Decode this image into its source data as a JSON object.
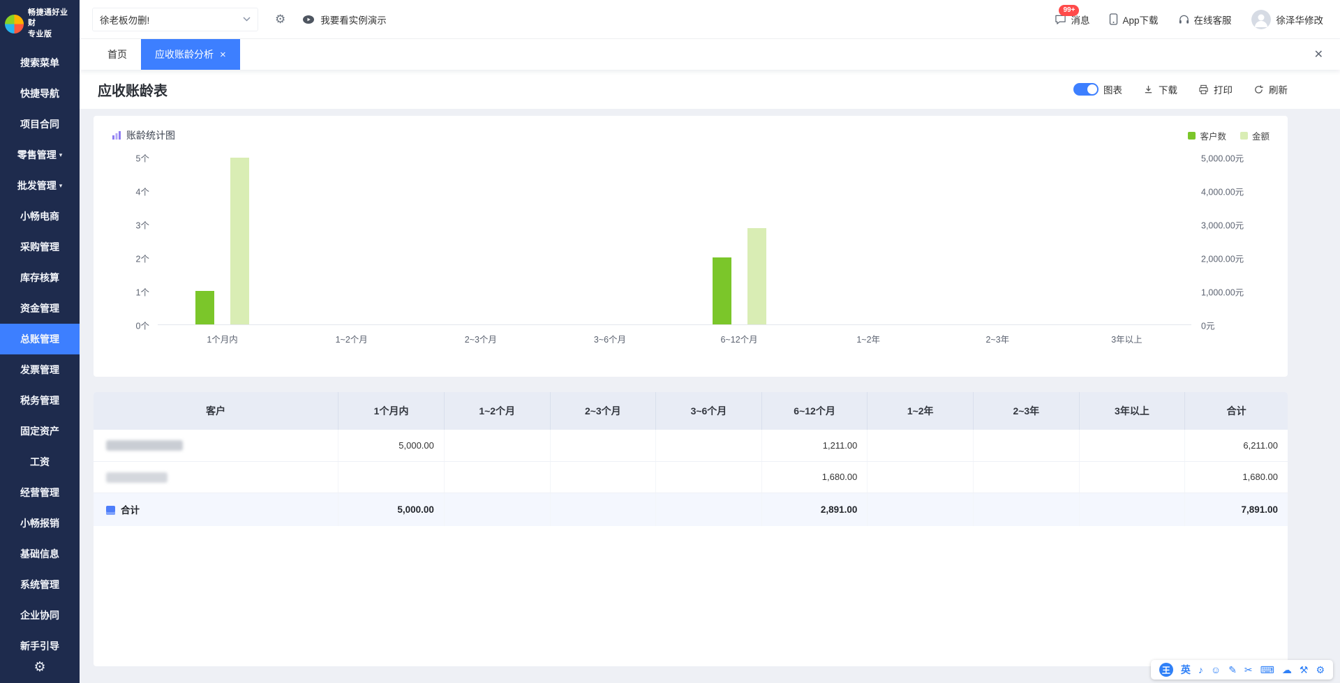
{
  "app": {
    "logo_title": "畅捷通好业财",
    "logo_subtitle": "专业版"
  },
  "sidebar": {
    "items": [
      {
        "label": "搜索菜单"
      },
      {
        "label": "快捷导航"
      },
      {
        "label": "项目合同"
      },
      {
        "label": "零售管理",
        "dropdown": true
      },
      {
        "label": "批发管理",
        "dropdown": true
      },
      {
        "label": "小畅电商"
      },
      {
        "label": "采购管理"
      },
      {
        "label": "库存核算"
      },
      {
        "label": "资金管理"
      },
      {
        "label": "总账管理",
        "active": true
      },
      {
        "label": "发票管理"
      },
      {
        "label": "税务管理"
      },
      {
        "label": "固定资产"
      },
      {
        "label": "工资"
      },
      {
        "label": "经营管理"
      },
      {
        "label": "小畅报销"
      },
      {
        "label": "基础信息"
      },
      {
        "label": "系统管理"
      },
      {
        "label": "企业协同"
      },
      {
        "label": "新手引导"
      }
    ]
  },
  "topbar": {
    "company_selector": "徐老板勿删!",
    "demo_link": "我要看实例演示",
    "messages_label": "消息",
    "messages_badge": "99+",
    "app_download_label": "App下载",
    "support_label": "在线客服",
    "username": "徐泽华修改"
  },
  "tabs": [
    {
      "label": "首页",
      "active": false,
      "closable": false
    },
    {
      "label": "应收账龄分析",
      "active": true,
      "closable": true
    }
  ],
  "page": {
    "title": "应收账龄表",
    "toggle_label": "图表",
    "chart_toggle_on": true,
    "download_label": "下载",
    "print_label": "打印",
    "refresh_label": "刷新"
  },
  "chart_data": {
    "type": "bar",
    "title": "账龄统计图",
    "categories": [
      "1个月内",
      "1~2个月",
      "2~3个月",
      "3~6个月",
      "6~12个月",
      "1~2年",
      "2~3年",
      "3年以上"
    ],
    "series": [
      {
        "name": "客户数",
        "color": "#7bc62a",
        "axis": "left",
        "values": [
          1,
          0,
          0,
          0,
          2,
          0,
          0,
          0
        ]
      },
      {
        "name": "金额",
        "color": "#d9edb4",
        "axis": "right",
        "values": [
          5000,
          0,
          0,
          0,
          2891,
          0,
          0,
          0
        ]
      }
    ],
    "left_axis": {
      "unit": "个",
      "min": 0,
      "max": 5,
      "ticks": [
        "0个",
        "1个",
        "2个",
        "3个",
        "4个",
        "5个"
      ]
    },
    "right_axis": {
      "unit": "元",
      "min": 0,
      "max": 5000,
      "ticks": [
        "0元",
        "1,000.00元",
        "2,000.00元",
        "3,000.00元",
        "4,000.00元",
        "5,000.00元"
      ]
    },
    "legend_position": "top-right",
    "grid": false
  },
  "table": {
    "headers": [
      "客户",
      "1个月内",
      "1~2个月",
      "2~3个月",
      "3~6个月",
      "6~12个月",
      "1~2年",
      "2~3年",
      "3年以上",
      "合计"
    ],
    "rows": [
      {
        "customer_redacted": true,
        "values": [
          "5,000.00",
          "",
          "",
          "",
          "1,211.00",
          "",
          "",
          "",
          "6,211.00"
        ]
      },
      {
        "customer_redacted": true,
        "values": [
          "",
          "",
          "",
          "",
          "1,680.00",
          "",
          "",
          "",
          "1,680.00"
        ]
      }
    ],
    "total_row": {
      "label": "合计",
      "values": [
        "5,000.00",
        "",
        "",
        "",
        "2,891.00",
        "",
        "",
        "",
        "7,891.00"
      ]
    }
  },
  "ime_bar": {
    "logo_char": "王",
    "lang_mode": "英",
    "icons": [
      "voice",
      "emoji",
      "handwriting",
      "screenshot",
      "keyboard",
      "cloud",
      "toolbox",
      "settings"
    ]
  },
  "colors": {
    "sidebar_bg": "#1e2b4d",
    "accent_blue": "#3d7fff",
    "bar_green": "#7bc62a",
    "bar_light_green": "#d9edb4",
    "badge_red": "#ff4a4a",
    "table_header_bg": "#e8ecf5",
    "total_row_bg": "#f4f7fe"
  }
}
